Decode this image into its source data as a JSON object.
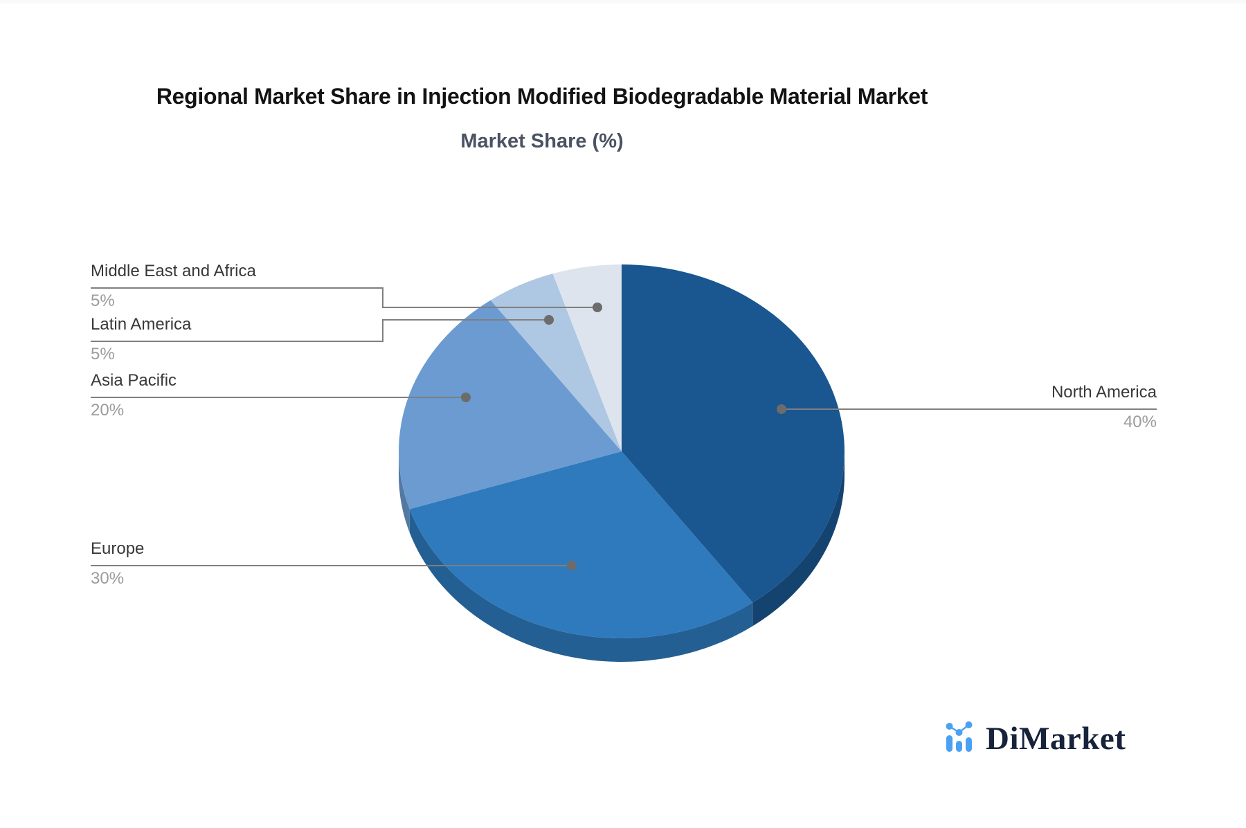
{
  "page": {
    "background": "#ffffff"
  },
  "chart": {
    "title": "Regional Market Share in Injection Modified Biodegradable Material Market",
    "subtitle": "Market Share (%)",
    "title_color": "#131313",
    "subtitle_color": "#4a5263"
  },
  "chart_data": {
    "type": "pie",
    "effect": "3d",
    "direction": "clockwise",
    "start_angle_deg": 0,
    "unit": "%",
    "title": "Regional Market Share in Injection Modified Biodegradable Material Market",
    "subtitle": "Market Share (%)",
    "categories": [
      "North America",
      "Europe",
      "Asia Pacific",
      "Latin America",
      "Middle East and Africa"
    ],
    "values": [
      40,
      30,
      20,
      5,
      5
    ],
    "slices": [
      {
        "label": "North America",
        "value": 40,
        "display": "40%",
        "color": "#1a568f",
        "label_side": "right"
      },
      {
        "label": "Europe",
        "value": 30,
        "display": "30%",
        "color": "#2e7abd",
        "label_side": "left"
      },
      {
        "label": "Asia Pacific",
        "value": 20,
        "display": "20%",
        "color": "#6b9bd0",
        "label_side": "left"
      },
      {
        "label": "Latin America",
        "value": 5,
        "display": "5%",
        "color": "#aec7e2",
        "label_side": "left"
      },
      {
        "label": "Middle East and Africa",
        "value": 5,
        "display": "5%",
        "color": "#dee4ee",
        "label_side": "left"
      }
    ],
    "leader_line_color": "#7f7f7f",
    "leader_dot_color": "#6c6c6c",
    "label_text_color": "#383838",
    "value_text_color": "#9b9b9b",
    "legend": "none",
    "grid": false
  },
  "branding": {
    "logo_text": "DiMarket",
    "logo_text_color": "#16233b",
    "logo_icon": "bar-line-chart-icon",
    "logo_icon_color": "#4aa1f3"
  }
}
